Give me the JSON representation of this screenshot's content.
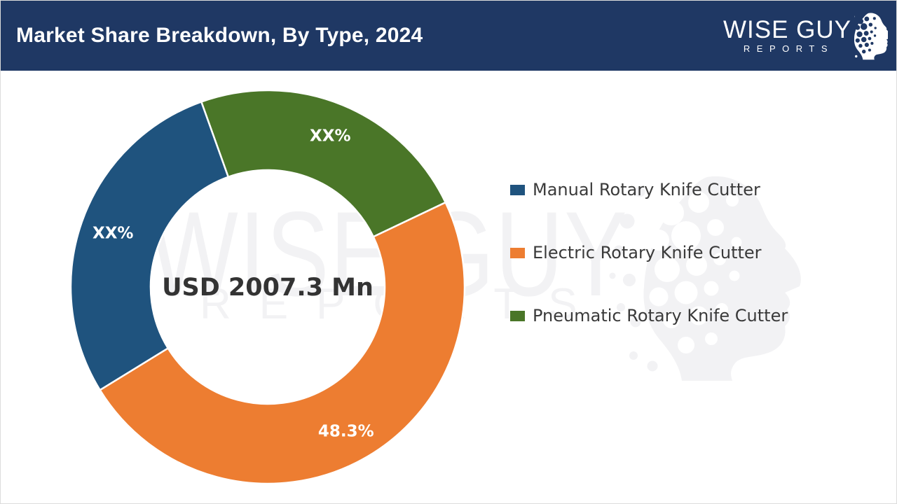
{
  "header": {
    "title": "Market Share Breakdown, By Type, 2024",
    "logo": {
      "line1": "WISE GUY",
      "line2": "REPORTS"
    }
  },
  "watermark": {
    "line1": "WISE GUY",
    "line2": "REPORTS"
  },
  "chart_data": {
    "type": "pie",
    "subtype": "donut",
    "title": "Market Share Breakdown, By Type, 2024",
    "center_label": "USD 2007.3 Mn",
    "start_angle_deg": 109.7,
    "direction": "clockwise",
    "inner_radius_ratio": 0.594,
    "slices": [
      {
        "name": "Pneumatic Rotary Knife Cutter",
        "value_pct": 23.4,
        "display_label": "XX%",
        "color": "#4A7628"
      },
      {
        "name": "Electric Rotary Knife Cutter",
        "value_pct": 48.3,
        "display_label": "48.3%",
        "color": "#ED7D31"
      },
      {
        "name": "Manual Rotary Knife Cutter",
        "value_pct": 28.3,
        "display_label": "XX%",
        "color": "#1F537E"
      }
    ],
    "legend_order": [
      2,
      1,
      0
    ],
    "legend_position": "right",
    "label_color": "#FFFFFF",
    "separator_color": "#FFFFFF"
  },
  "colors": {
    "header_bg": "#1F3864",
    "center_text": "#333333",
    "legend_text": "#3A3A3A",
    "watermark": "#F2F2F4",
    "page_border": "#DCDCDC"
  }
}
